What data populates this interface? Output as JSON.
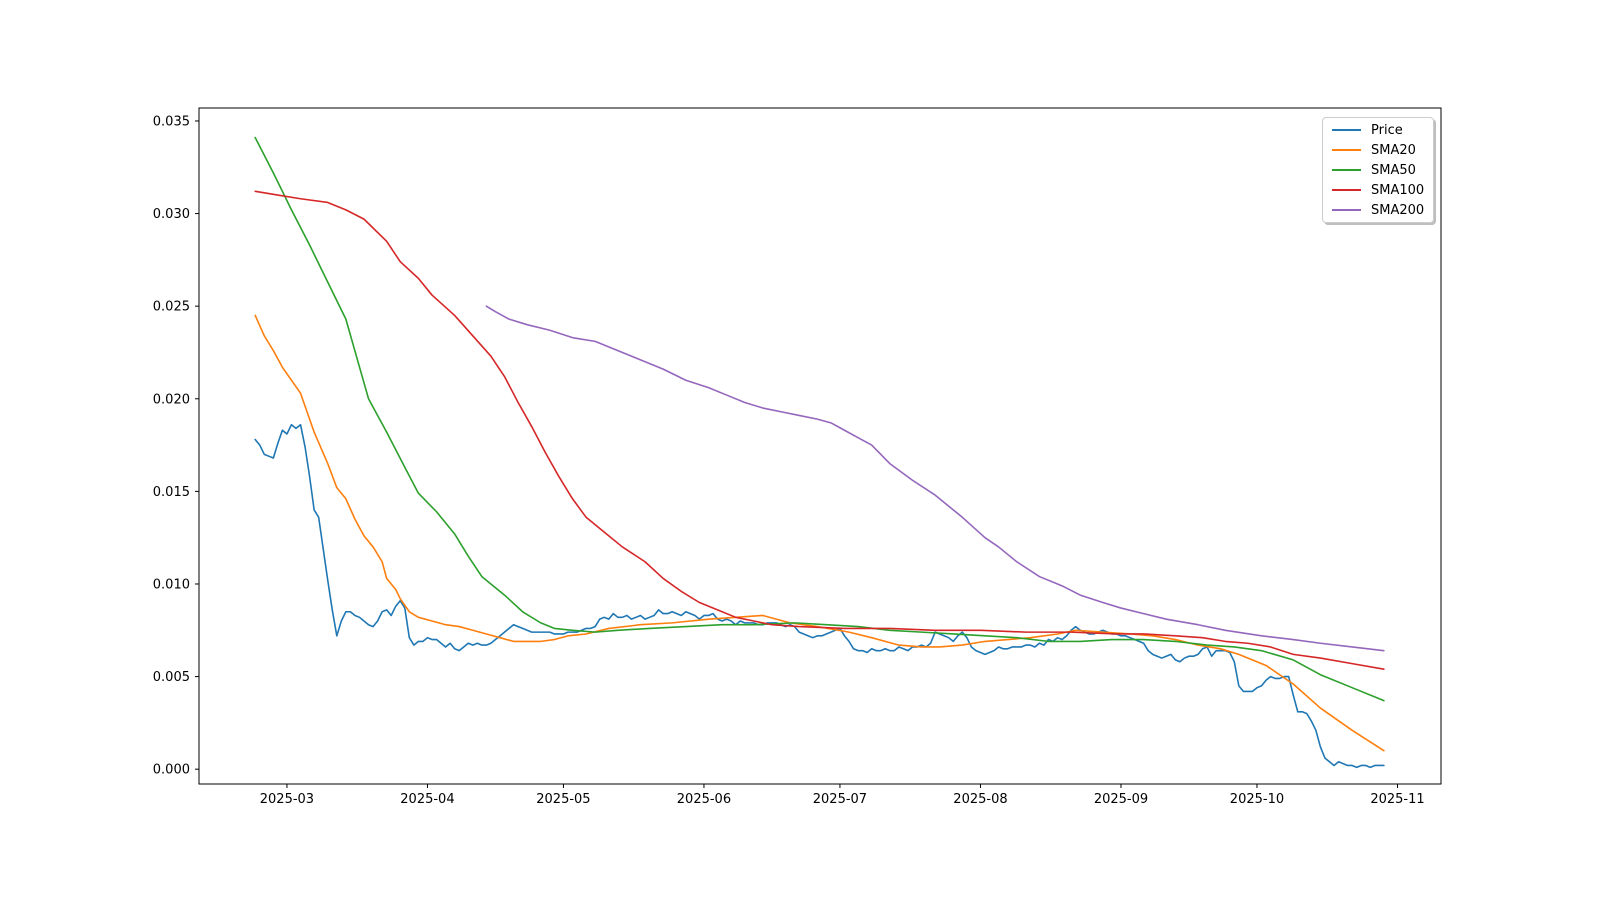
{
  "figure": {
    "background_color": "#ffffff",
    "axes_edge_color": "#000000",
    "legend_border_color": "#cccccc"
  },
  "chart_data": {
    "type": "line",
    "title": "",
    "xlabel": "",
    "ylabel": "",
    "grid": false,
    "x_unit": "days since 2025-02-22",
    "xlim": [
      -12.4,
      261.6
    ],
    "ylim": [
      -0.0008,
      0.0357
    ],
    "x_ticks": [
      {
        "day": 7,
        "label": "2025-03"
      },
      {
        "day": 38,
        "label": "2025-04"
      },
      {
        "day": 68,
        "label": "2025-05"
      },
      {
        "day": 99,
        "label": "2025-06"
      },
      {
        "day": 129,
        "label": "2025-07"
      },
      {
        "day": 160,
        "label": "2025-08"
      },
      {
        "day": 191,
        "label": "2025-09"
      },
      {
        "day": 221,
        "label": "2025-10"
      },
      {
        "day": 252,
        "label": "2025-11"
      }
    ],
    "y_ticks": [
      {
        "value": 0.0,
        "label": "0.000"
      },
      {
        "value": 0.005,
        "label": "0.005"
      },
      {
        "value": 0.01,
        "label": "0.010"
      },
      {
        "value": 0.015,
        "label": "0.015"
      },
      {
        "value": 0.02,
        "label": "0.020"
      },
      {
        "value": 0.025,
        "label": "0.025"
      },
      {
        "value": 0.03,
        "label": "0.030"
      },
      {
        "value": 0.035,
        "label": "0.035"
      }
    ],
    "legend": {
      "position": "upper right",
      "entries": [
        "Price",
        "SMA20",
        "SMA50",
        "SMA100",
        "SMA200"
      ]
    },
    "series": [
      {
        "name": "Price",
        "color": "#1f77b4",
        "x_mode": "daily_from_day0",
        "values": [
          0.0178,
          0.0175,
          0.017,
          0.0169,
          0.0168,
          0.0176,
          0.0183,
          0.0181,
          0.0186,
          0.0184,
          0.0186,
          0.0174,
          0.0158,
          0.014,
          0.0136,
          0.0119,
          0.0102,
          0.0086,
          0.0072,
          0.008,
          0.0085,
          0.0085,
          0.0083,
          0.0082,
          0.008,
          0.0078,
          0.0077,
          0.008,
          0.0085,
          0.0086,
          0.0083,
          0.0088,
          0.0091,
          0.0087,
          0.0071,
          0.0067,
          0.0069,
          0.0069,
          0.0071,
          0.007,
          0.007,
          0.0068,
          0.0066,
          0.0068,
          0.0065,
          0.0064,
          0.0066,
          0.0068,
          0.0067,
          0.0068,
          0.0067,
          0.0067,
          0.0068,
          0.007,
          0.0072,
          0.0074,
          0.0076,
          0.0078,
          0.0077,
          0.0076,
          0.0075,
          0.0074,
          0.0074,
          0.0074,
          0.0074,
          0.0074,
          0.0073,
          0.0073,
          0.0073,
          0.0074,
          0.0074,
          0.0074,
          0.0075,
          0.0076,
          0.0076,
          0.0077,
          0.0081,
          0.0082,
          0.0081,
          0.0084,
          0.0082,
          0.0082,
          0.0083,
          0.0081,
          0.0082,
          0.0083,
          0.0081,
          0.0082,
          0.0083,
          0.0086,
          0.0084,
          0.0084,
          0.0085,
          0.0084,
          0.0083,
          0.0085,
          0.0084,
          0.0083,
          0.0081,
          0.0083,
          0.0083,
          0.0084,
          0.0081,
          0.008,
          0.0081,
          0.008,
          0.0078,
          0.008,
          0.0079,
          0.0079,
          0.0079,
          0.0078,
          0.0078,
          0.0079,
          0.0079,
          0.0079,
          0.0078,
          0.0077,
          0.0078,
          0.0077,
          0.0074,
          0.0073,
          0.0072,
          0.0071,
          0.0072,
          0.0072,
          0.0073,
          0.0074,
          0.0075,
          0.0076,
          0.0072,
          0.0069,
          0.0065,
          0.0064,
          0.0064,
          0.0063,
          0.0065,
          0.0064,
          0.0064,
          0.0065,
          0.0064,
          0.0064,
          0.0066,
          0.0065,
          0.0064,
          0.0066,
          0.0066,
          0.0067,
          0.0066,
          0.0068,
          0.0074,
          0.0073,
          0.0072,
          0.0071,
          0.0069,
          0.0072,
          0.0074,
          0.0071,
          0.0066,
          0.0064,
          0.0063,
          0.0062,
          0.0063,
          0.0064,
          0.0066,
          0.0065,
          0.0065,
          0.0066,
          0.0066,
          0.0066,
          0.0067,
          0.0067,
          0.0066,
          0.0068,
          0.0067,
          0.007,
          0.0069,
          0.0071,
          0.007,
          0.0072,
          0.0075,
          0.0077,
          0.0075,
          0.0074,
          0.0073,
          0.0073,
          0.0074,
          0.0075,
          0.0074,
          0.0073,
          0.0073,
          0.0072,
          0.0072,
          0.0071,
          0.007,
          0.0069,
          0.0068,
          0.0064,
          0.0062,
          0.0061,
          0.006,
          0.0061,
          0.0062,
          0.0059,
          0.0058,
          0.006,
          0.0061,
          0.0061,
          0.0062,
          0.0065,
          0.0066,
          0.0061,
          0.0064,
          0.0064,
          0.0064,
          0.0063,
          0.0058,
          0.0045,
          0.0042,
          0.0042,
          0.0042,
          0.0044,
          0.0045,
          0.0048,
          0.005,
          0.0049,
          0.0049,
          0.005,
          0.005,
          0.004,
          0.0031,
          0.0031,
          0.003,
          0.0026,
          0.0021,
          0.0012,
          0.0006,
          0.0004,
          0.0002,
          0.0004,
          0.0003,
          0.0002,
          0.0002,
          0.0001,
          0.0002,
          0.0002,
          0.0001,
          0.0002,
          0.0002,
          0.0002
        ]
      },
      {
        "name": "SMA20",
        "color": "#ff7f0e",
        "points": [
          [
            0,
            0.0245
          ],
          [
            2,
            0.0234
          ],
          [
            4,
            0.0226
          ],
          [
            6,
            0.0217
          ],
          [
            8,
            0.021
          ],
          [
            10,
            0.0203
          ],
          [
            13,
            0.0182
          ],
          [
            16,
            0.0165
          ],
          [
            18,
            0.0152
          ],
          [
            20,
            0.0146
          ],
          [
            22,
            0.0135
          ],
          [
            24,
            0.0126
          ],
          [
            26,
            0.012
          ],
          [
            28,
            0.0112
          ],
          [
            29,
            0.0103
          ],
          [
            31,
            0.0097
          ],
          [
            32,
            0.0092
          ],
          [
            34,
            0.0085
          ],
          [
            36,
            0.0082
          ],
          [
            39,
            0.008
          ],
          [
            42,
            0.0078
          ],
          [
            45,
            0.0077
          ],
          [
            48,
            0.0075
          ],
          [
            51,
            0.0073
          ],
          [
            54,
            0.0071
          ],
          [
            57,
            0.0069
          ],
          [
            60,
            0.0069
          ],
          [
            63,
            0.0069
          ],
          [
            66,
            0.007
          ],
          [
            69,
            0.0072
          ],
          [
            73,
            0.0073
          ],
          [
            78,
            0.0076
          ],
          [
            85,
            0.0078
          ],
          [
            92,
            0.0079
          ],
          [
            100,
            0.0081
          ],
          [
            106,
            0.0082
          ],
          [
            112,
            0.0083
          ],
          [
            118,
            0.0079
          ],
          [
            124,
            0.0077
          ],
          [
            131,
            0.0074
          ],
          [
            136,
            0.0071
          ],
          [
            142,
            0.0067
          ],
          [
            147,
            0.0066
          ],
          [
            151,
            0.0066
          ],
          [
            156,
            0.0067
          ],
          [
            161,
            0.0069
          ],
          [
            171,
            0.0071
          ],
          [
            177,
            0.0073
          ],
          [
            181,
            0.0075
          ],
          [
            187,
            0.0074
          ],
          [
            193,
            0.0073
          ],
          [
            198,
            0.0072
          ],
          [
            203,
            0.007
          ],
          [
            208,
            0.0067
          ],
          [
            213,
            0.0065
          ],
          [
            217,
            0.0062
          ],
          [
            223,
            0.0056
          ],
          [
            229,
            0.0046
          ],
          [
            235,
            0.0033
          ],
          [
            242,
            0.0021
          ],
          [
            249,
            0.001
          ]
        ]
      },
      {
        "name": "SMA50",
        "color": "#2ca02c",
        "points": [
          [
            0,
            0.0341
          ],
          [
            4,
            0.0322
          ],
          [
            8,
            0.0302
          ],
          [
            12,
            0.0283
          ],
          [
            16,
            0.0263
          ],
          [
            20,
            0.0243
          ],
          [
            25,
            0.02
          ],
          [
            29,
            0.0182
          ],
          [
            33,
            0.0163
          ],
          [
            36,
            0.0149
          ],
          [
            40,
            0.0139
          ],
          [
            44,
            0.0127
          ],
          [
            47,
            0.0115
          ],
          [
            50,
            0.0104
          ],
          [
            55,
            0.0094
          ],
          [
            59,
            0.0085
          ],
          [
            63,
            0.0079
          ],
          [
            66,
            0.0076
          ],
          [
            70,
            0.0075
          ],
          [
            75,
            0.0074
          ],
          [
            80,
            0.0075
          ],
          [
            87,
            0.0076
          ],
          [
            95,
            0.0077
          ],
          [
            103,
            0.0078
          ],
          [
            110,
            0.0078
          ],
          [
            119,
            0.0079
          ],
          [
            126,
            0.0078
          ],
          [
            133,
            0.0077
          ],
          [
            140,
            0.0075
          ],
          [
            147,
            0.0074
          ],
          [
            154,
            0.0073
          ],
          [
            161,
            0.0072
          ],
          [
            168,
            0.0071
          ],
          [
            175,
            0.0069
          ],
          [
            182,
            0.0069
          ],
          [
            189,
            0.007
          ],
          [
            196,
            0.007
          ],
          [
            203,
            0.0069
          ],
          [
            210,
            0.0067
          ],
          [
            216,
            0.0066
          ],
          [
            222,
            0.0064
          ],
          [
            229,
            0.0059
          ],
          [
            235,
            0.0051
          ],
          [
            242,
            0.0044
          ],
          [
            249,
            0.0037
          ]
        ]
      },
      {
        "name": "SMA100",
        "color": "#d62728",
        "points": [
          [
            0,
            0.0312
          ],
          [
            5,
            0.031
          ],
          [
            10,
            0.0308
          ],
          [
            16,
            0.0306
          ],
          [
            20,
            0.0302
          ],
          [
            24,
            0.0297
          ],
          [
            29,
            0.0285
          ],
          [
            32,
            0.0274
          ],
          [
            36,
            0.0265
          ],
          [
            39,
            0.0256
          ],
          [
            44,
            0.0245
          ],
          [
            48,
            0.0234
          ],
          [
            52,
            0.0223
          ],
          [
            55,
            0.0212
          ],
          [
            58,
            0.0198
          ],
          [
            61,
            0.0185
          ],
          [
            64,
            0.0171
          ],
          [
            67,
            0.0158
          ],
          [
            70,
            0.0146
          ],
          [
            73,
            0.0136
          ],
          [
            77,
            0.0128
          ],
          [
            81,
            0.012
          ],
          [
            86,
            0.0112
          ],
          [
            90,
            0.0103
          ],
          [
            94,
            0.0096
          ],
          [
            98,
            0.009
          ],
          [
            102,
            0.0086
          ],
          [
            106,
            0.0082
          ],
          [
            110,
            0.008
          ],
          [
            114,
            0.0078
          ],
          [
            120,
            0.0077
          ],
          [
            130,
            0.0076
          ],
          [
            140,
            0.0076
          ],
          [
            150,
            0.0075
          ],
          [
            160,
            0.0075
          ],
          [
            170,
            0.0074
          ],
          [
            180,
            0.0074
          ],
          [
            190,
            0.0073
          ],
          [
            196,
            0.0073
          ],
          [
            203,
            0.0072
          ],
          [
            209,
            0.0071
          ],
          [
            214,
            0.0069
          ],
          [
            219,
            0.0068
          ],
          [
            224,
            0.0066
          ],
          [
            229,
            0.0062
          ],
          [
            235,
            0.006
          ],
          [
            242,
            0.0057
          ],
          [
            249,
            0.0054
          ]
        ]
      },
      {
        "name": "SMA200",
        "color": "#9467bd",
        "points": [
          [
            51,
            0.025
          ],
          [
            53,
            0.0247
          ],
          [
            56,
            0.0243
          ],
          [
            60,
            0.024
          ],
          [
            65,
            0.0237
          ],
          [
            70,
            0.0233
          ],
          [
            75,
            0.0231
          ],
          [
            80,
            0.0226
          ],
          [
            85,
            0.0221
          ],
          [
            90,
            0.0216
          ],
          [
            95,
            0.021
          ],
          [
            100,
            0.0206
          ],
          [
            104,
            0.0202
          ],
          [
            108,
            0.0198
          ],
          [
            112,
            0.0195
          ],
          [
            116,
            0.0193
          ],
          [
            120,
            0.0191
          ],
          [
            124,
            0.0189
          ],
          [
            127,
            0.0187
          ],
          [
            130,
            0.0183
          ],
          [
            133,
            0.0179
          ],
          [
            136,
            0.0175
          ],
          [
            140,
            0.0165
          ],
          [
            145,
            0.0156
          ],
          [
            150,
            0.0148
          ],
          [
            156,
            0.0136
          ],
          [
            161,
            0.0125
          ],
          [
            164,
            0.012
          ],
          [
            168,
            0.0112
          ],
          [
            173,
            0.0104
          ],
          [
            178,
            0.0099
          ],
          [
            182,
            0.0094
          ],
          [
            187,
            0.009
          ],
          [
            191,
            0.0087
          ],
          [
            196,
            0.0084
          ],
          [
            201,
            0.0081
          ],
          [
            208,
            0.0078
          ],
          [
            214,
            0.0075
          ],
          [
            222,
            0.0072
          ],
          [
            229,
            0.007
          ],
          [
            235,
            0.0068
          ],
          [
            242,
            0.0066
          ],
          [
            249,
            0.0064
          ]
        ]
      }
    ]
  }
}
